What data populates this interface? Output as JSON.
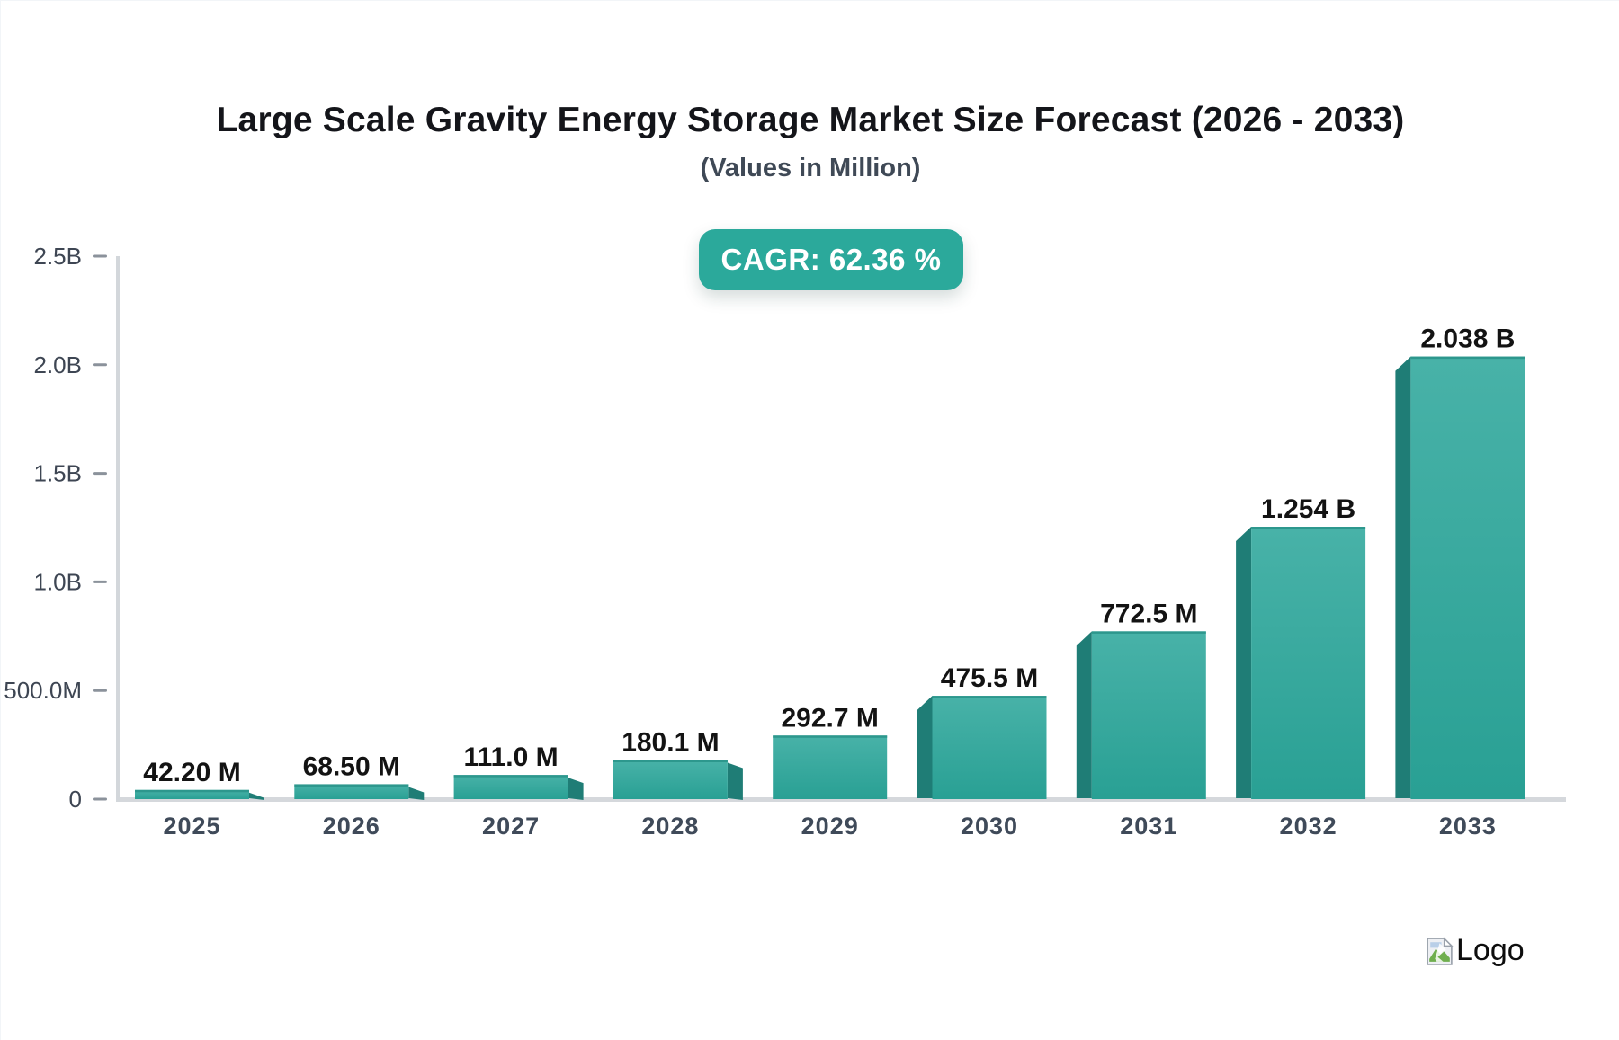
{
  "header": {
    "title": "Large Scale Gravity Energy Storage Market Size Forecast (2026 - 2033)",
    "subtitle": "(Values in Million)"
  },
  "badge": {
    "label": "CAGR: 62.36 %",
    "bg_color": "#2ba99b",
    "text_color": "#ffffff"
  },
  "footer": {
    "logo_text": "Logo"
  },
  "chart_data": {
    "type": "bar",
    "title": "Large Scale Gravity Energy Storage Market Size Forecast (2026 - 2033)",
    "subtitle": "(Values in Million)",
    "cagr_label": "CAGR: 62.36 %",
    "categories": [
      "2025",
      "2026",
      "2027",
      "2028",
      "2029",
      "2030",
      "2031",
      "2032",
      "2033"
    ],
    "values_million": [
      42.2,
      68.5,
      111.0,
      180.1,
      292.7,
      475.5,
      772.5,
      1254,
      2038
    ],
    "value_labels": [
      "42.20 M",
      "68.50 M",
      "111.0 M",
      "180.1 M",
      "292.7 M",
      "475.5 M",
      "772.5 M",
      "1.254 B",
      "2.038 B"
    ],
    "bar_3d_side": [
      "right",
      "right",
      "right",
      "right",
      "none",
      "left",
      "left",
      "left",
      "left"
    ],
    "y_ticks": [
      {
        "value": 0,
        "label": "0"
      },
      {
        "value": 500,
        "label": "500.0M"
      },
      {
        "value": 1000,
        "label": "1.0B"
      },
      {
        "value": 1500,
        "label": "1.5B"
      },
      {
        "value": 2000,
        "label": "2.0B"
      },
      {
        "value": 2500,
        "label": "2.5B"
      }
    ],
    "ylim": [
      0,
      2500
    ],
    "grid": false,
    "legend": false,
    "colors": {
      "bar_top": "#48b2a8",
      "bar_bottom": "#29a094",
      "bar_side": "#1f7d76",
      "bar_top_edge": "#2d978d",
      "axis_line": "#d3d7db",
      "baseline": "#d5d8dc",
      "tick_dash": "#8b929b",
      "tick_label": "#3e4653",
      "year_label": "#3f4a59",
      "value_label": "#131313"
    }
  }
}
